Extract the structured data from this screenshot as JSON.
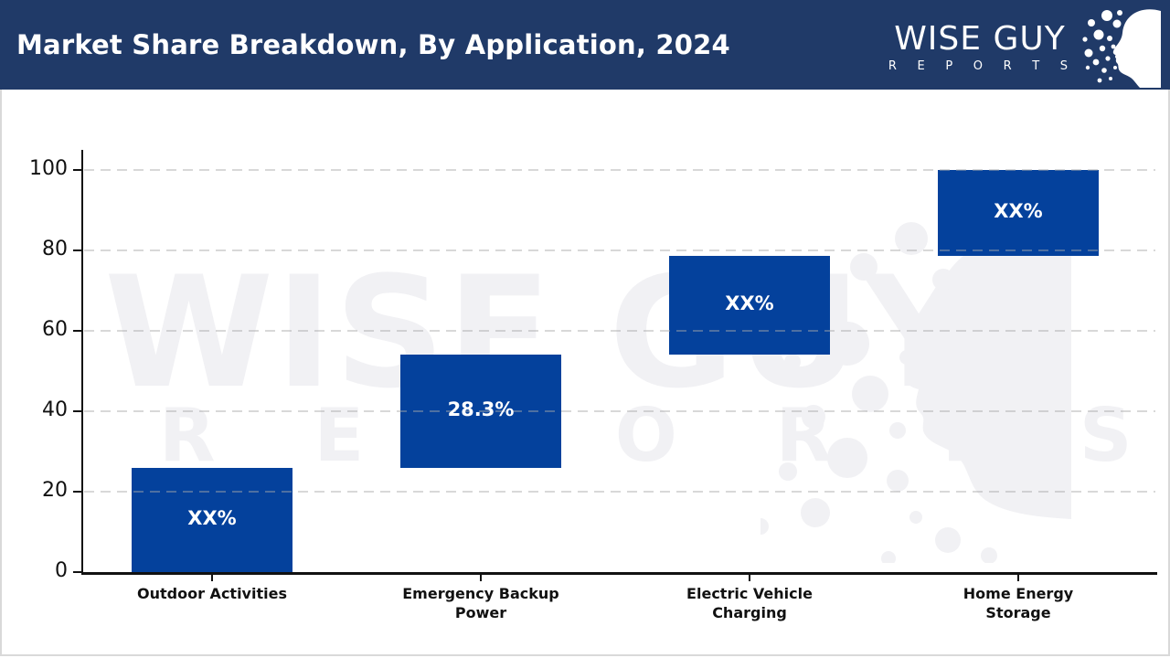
{
  "header": {
    "title": "Market Share Breakdown, By Application, 2024",
    "brand": {
      "line1": "WISE GUY",
      "line2": "REPORTS"
    }
  },
  "watermark": {
    "line1": "WISE GUY",
    "line2": "REPORTS"
  },
  "colors": {
    "header_bg": "#203a68",
    "bar": "#04419c",
    "axis": "#111111",
    "gridline": "#d9d9d9",
    "watermark": "#f1f1f4",
    "bar_label_text": "#ffffff",
    "card_border": "#d9d9d9"
  },
  "chart_data": {
    "type": "bar",
    "subtype": "waterfall",
    "title": "Market Share Breakdown, By Application, 2024",
    "xlabel": "",
    "ylabel": "",
    "ylim": [
      0,
      100
    ],
    "yticks": [
      0,
      20,
      40,
      60,
      80,
      100
    ],
    "grid": "dashed-horizontal",
    "legend": "none",
    "categories": [
      "Outdoor Activities",
      "Emergency Backup Power",
      "Electric Vehicle Charging",
      "Home Energy Storage"
    ],
    "category_label_lines": [
      [
        "Outdoor Activities"
      ],
      [
        "Emergency Backup",
        "Power"
      ],
      [
        "Electric Vehicle",
        "Charging"
      ],
      [
        "Home Energy",
        "Storage"
      ]
    ],
    "segments": [
      {
        "category": "Outdoor Activities",
        "start": 0,
        "end": 25.8,
        "label": "XX%"
      },
      {
        "category": "Emergency Backup Power",
        "start": 25.8,
        "end": 54.1,
        "label": "28.3%"
      },
      {
        "category": "Electric Vehicle Charging",
        "start": 54.1,
        "end": 78.6,
        "label": "XX%"
      },
      {
        "category": "Home Energy Storage",
        "start": 78.6,
        "end": 100,
        "label": "XX%"
      }
    ]
  }
}
